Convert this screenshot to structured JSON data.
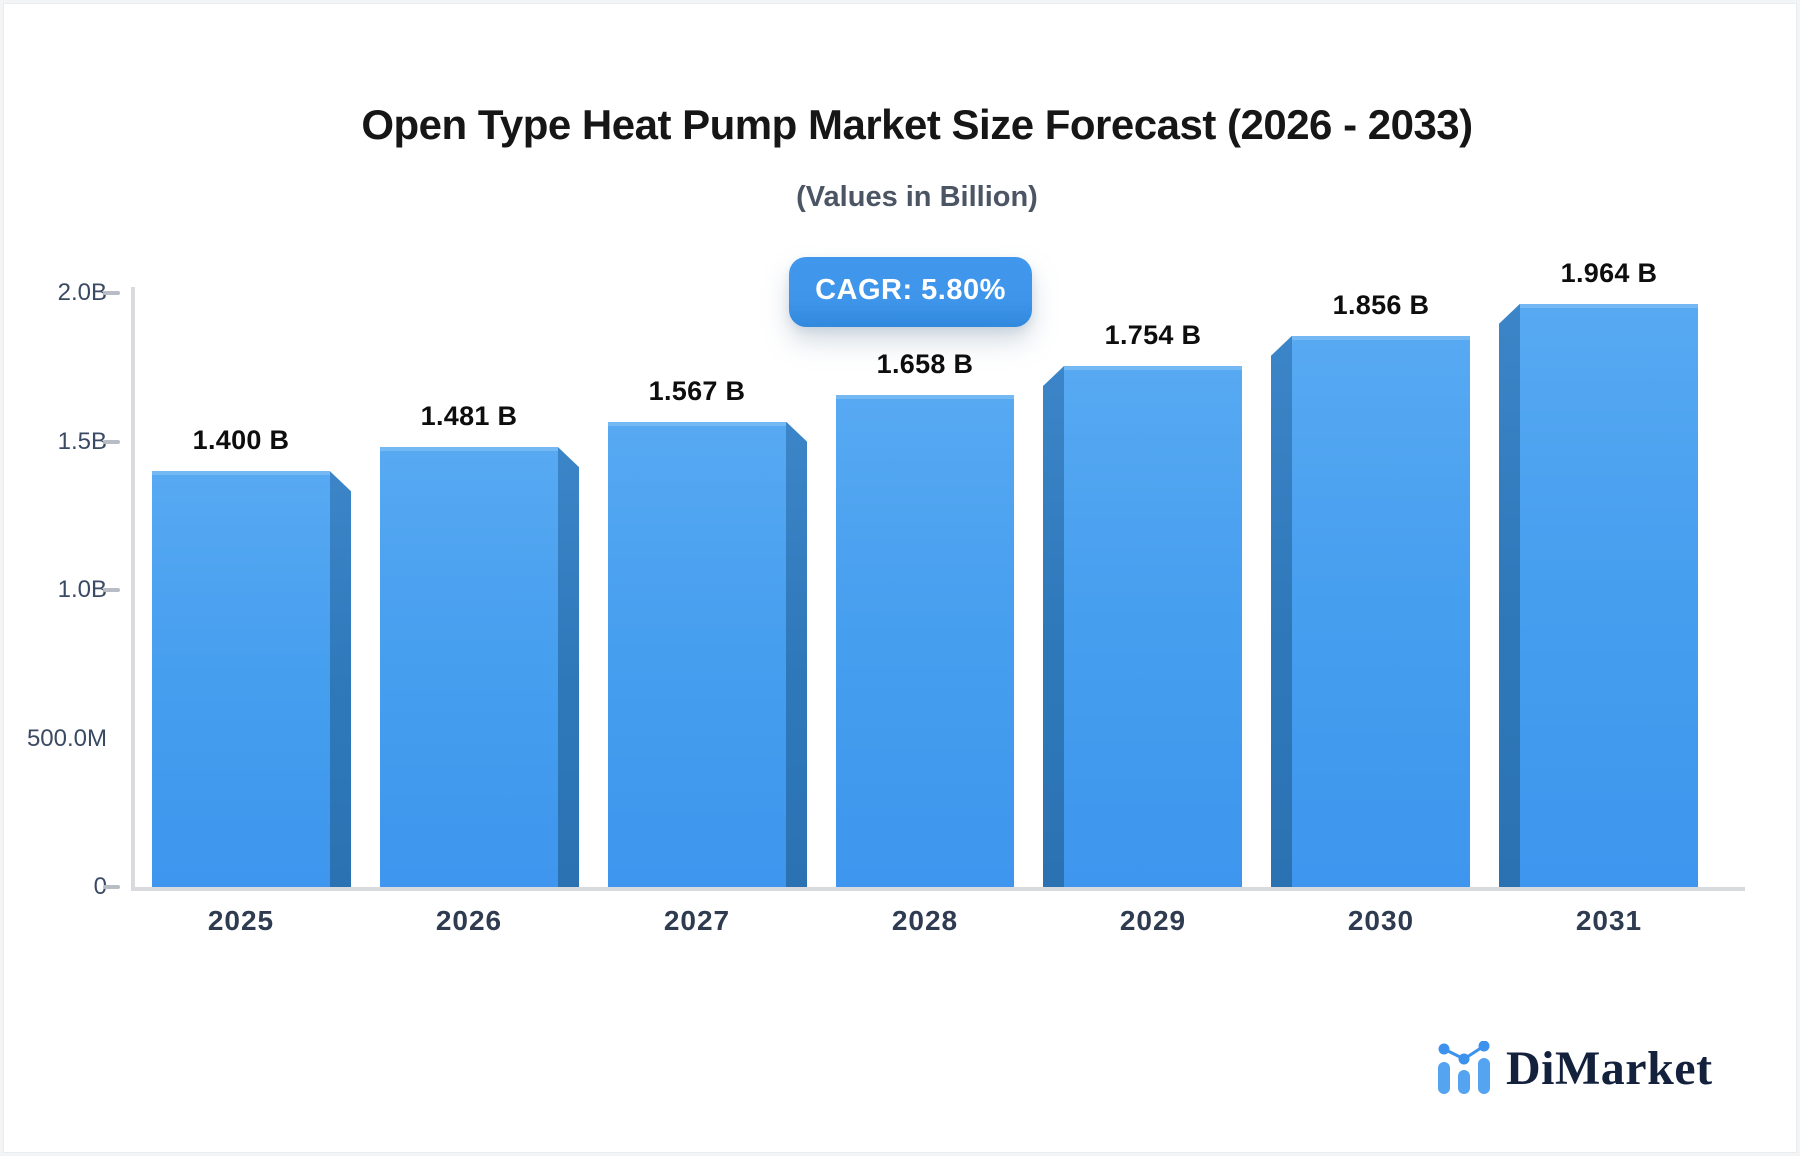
{
  "header": {
    "title": "Open Type Heat Pump Market Size Forecast (2026 - 2033)",
    "subtitle": "(Values in Billion)"
  },
  "badge": {
    "label": "CAGR: 5.80%"
  },
  "brand": {
    "name": "DiMarket",
    "icon": "mini-bar-line-chart-icon"
  },
  "colors": {
    "bar_face": "#459eef",
    "bar_face_highlight": "#74b9f4",
    "bar_side_shadow": "#2e78ba",
    "badge_background": "#3e95e9",
    "badge_text": "#ffffff",
    "axis_line": "#d8dade",
    "tick_mark": "#b7bcc5",
    "y_label": "#3b4a63",
    "x_label": "#2f3b50",
    "value_label": "#0e0e0e",
    "logo_blue": "#4d9ef0",
    "logo_navy": "#14213c"
  },
  "chart_data": {
    "type": "bar",
    "title": "Open Type Heat Pump Market Size Forecast (2026 - 2033)",
    "subtitle": "(Values in Billion)",
    "unit": "Billion",
    "cagr_annotation": "CAGR: 5.80%",
    "categories": [
      "2025",
      "2026",
      "2027",
      "2028",
      "2029",
      "2030",
      "2031"
    ],
    "values": [
      1.4,
      1.481,
      1.567,
      1.658,
      1.754,
      1.856,
      1.964
    ],
    "value_labels": [
      "1.400 B",
      "1.481 B",
      "1.567 B",
      "1.658 B",
      "1.754 B",
      "1.856 B",
      "1.964 B"
    ],
    "xlabel": "",
    "ylabel": "",
    "ylim": [
      0,
      2.2
    ],
    "yticks": [
      {
        "label": "2.0B",
        "value": 2.0,
        "dash": true
      },
      {
        "label": "1.5B",
        "value": 1.5,
        "dash": true
      },
      {
        "label": "1.0B",
        "value": 1.0,
        "dash": true
      },
      {
        "label": "500.0M",
        "value": 0.5,
        "dash": false
      },
      {
        "label": "0",
        "value": 0.0,
        "dash": true
      }
    ],
    "grid": false,
    "legend": false,
    "style": "pseudo-3d bars, shadow side faces outward from center"
  }
}
